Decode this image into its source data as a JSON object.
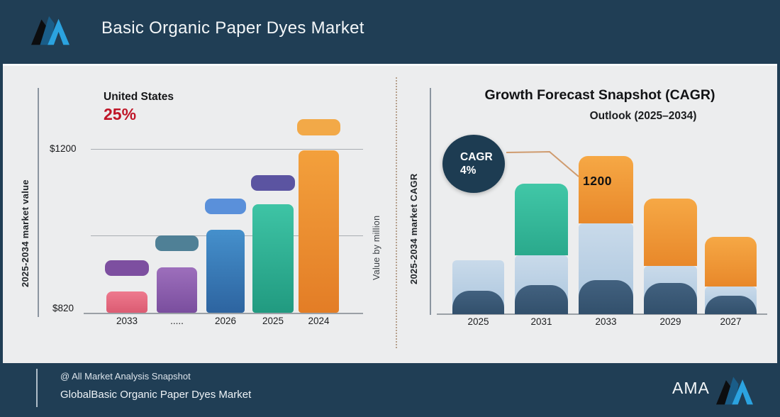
{
  "header": {
    "title": "Basic Organic Paper Dyes Market"
  },
  "footer": {
    "line1": "@ All Market Analysis Snapshot",
    "line2": "GlobalBasic Organic Paper Dyes Market",
    "brand": "AMA"
  },
  "colors": {
    "page_bg": "#203e55",
    "panel_bg": "#ecedee",
    "accent_red": "#bf1527",
    "badge_bg": "#1d3c52",
    "connector": "#cf9b6e",
    "logo_black": "#0c0d0f",
    "logo_mid_blue": "#1a5d88",
    "logo_light_blue": "#2ba3e0"
  },
  "chart_data": [
    {
      "type": "bar",
      "region_label": "United States",
      "region_value": "25%",
      "ylabel": "2025-2034 market value",
      "right_label": "Value by million",
      "yticks": [
        {
          "label": "$1200",
          "value": 1200
        },
        {
          "label": "$820",
          "value": 820
        }
      ],
      "ylim": [
        820,
        1280
      ],
      "gridline_values": [
        1200,
        1000
      ],
      "categories": [
        "2033",
        ".....",
        "2026",
        "2025",
        "2024"
      ],
      "series": [
        {
          "name": "market value (bar top, $ million)",
          "values": [
            869,
            925,
            1012,
            1072,
            1197
          ]
        },
        {
          "name": "floating cap segment ($ million range)",
          "ranges": [
            [
              905,
              941
            ],
            [
              963,
              999
            ],
            [
              1049,
              1085
            ],
            [
              1103,
              1139
            ],
            [
              1231,
              1269
            ]
          ]
        }
      ],
      "bar_colors": [
        [
          "#ee7a8e",
          "#db5c72"
        ],
        [
          "#9d6fbc",
          "#7a4e9e"
        ],
        [
          "#4590cc",
          "#2d64a0"
        ],
        [
          "#3ec4a5",
          "#219a80"
        ],
        [
          "#f3a03c",
          "#e37d26"
        ]
      ],
      "cap_colors": [
        "#7d4fa0",
        "#4f8096",
        "#5a90da",
        "#5b54a1",
        "#f2a948"
      ]
    },
    {
      "type": "stacked-bar",
      "title": "Growth Forecast Snapshot (CAGR)",
      "subtitle": "Outlook (2025–2034)",
      "badge": {
        "label": "CAGR",
        "value": "4%"
      },
      "ylabel": "2025-2034 market CAGR",
      "annotation": {
        "text": "1200",
        "category": "2033"
      },
      "categories": [
        "2025",
        "2031",
        "2033",
        "2029",
        "2027"
      ],
      "unit": "relative height, % of plot area",
      "series": [
        {
          "name": "base (navy)",
          "values": [
            11.8,
            14.6,
            17.1,
            15.7,
            9.3
          ]
        },
        {
          "name": "mid (light blue)",
          "values": [
            15.3,
            15.0,
            28.6,
            8.6,
            4.6
          ]
        },
        {
          "name": "top (colored)",
          "values": [
            0,
            36.1,
            33.9,
            33.9,
            25.0
          ]
        }
      ],
      "top_segment_colors": [
        null,
        "teal",
        "orange",
        "orange",
        "orange"
      ],
      "palette": {
        "navy": [
          "#42617f",
          "#32506c"
        ],
        "lightblue": [
          "#c9daea",
          "#aac5dd"
        ],
        "teal": [
          "#41c7a7",
          "#2aa98c"
        ],
        "orange": [
          "#f6a845",
          "#e8882a"
        ]
      }
    }
  ]
}
